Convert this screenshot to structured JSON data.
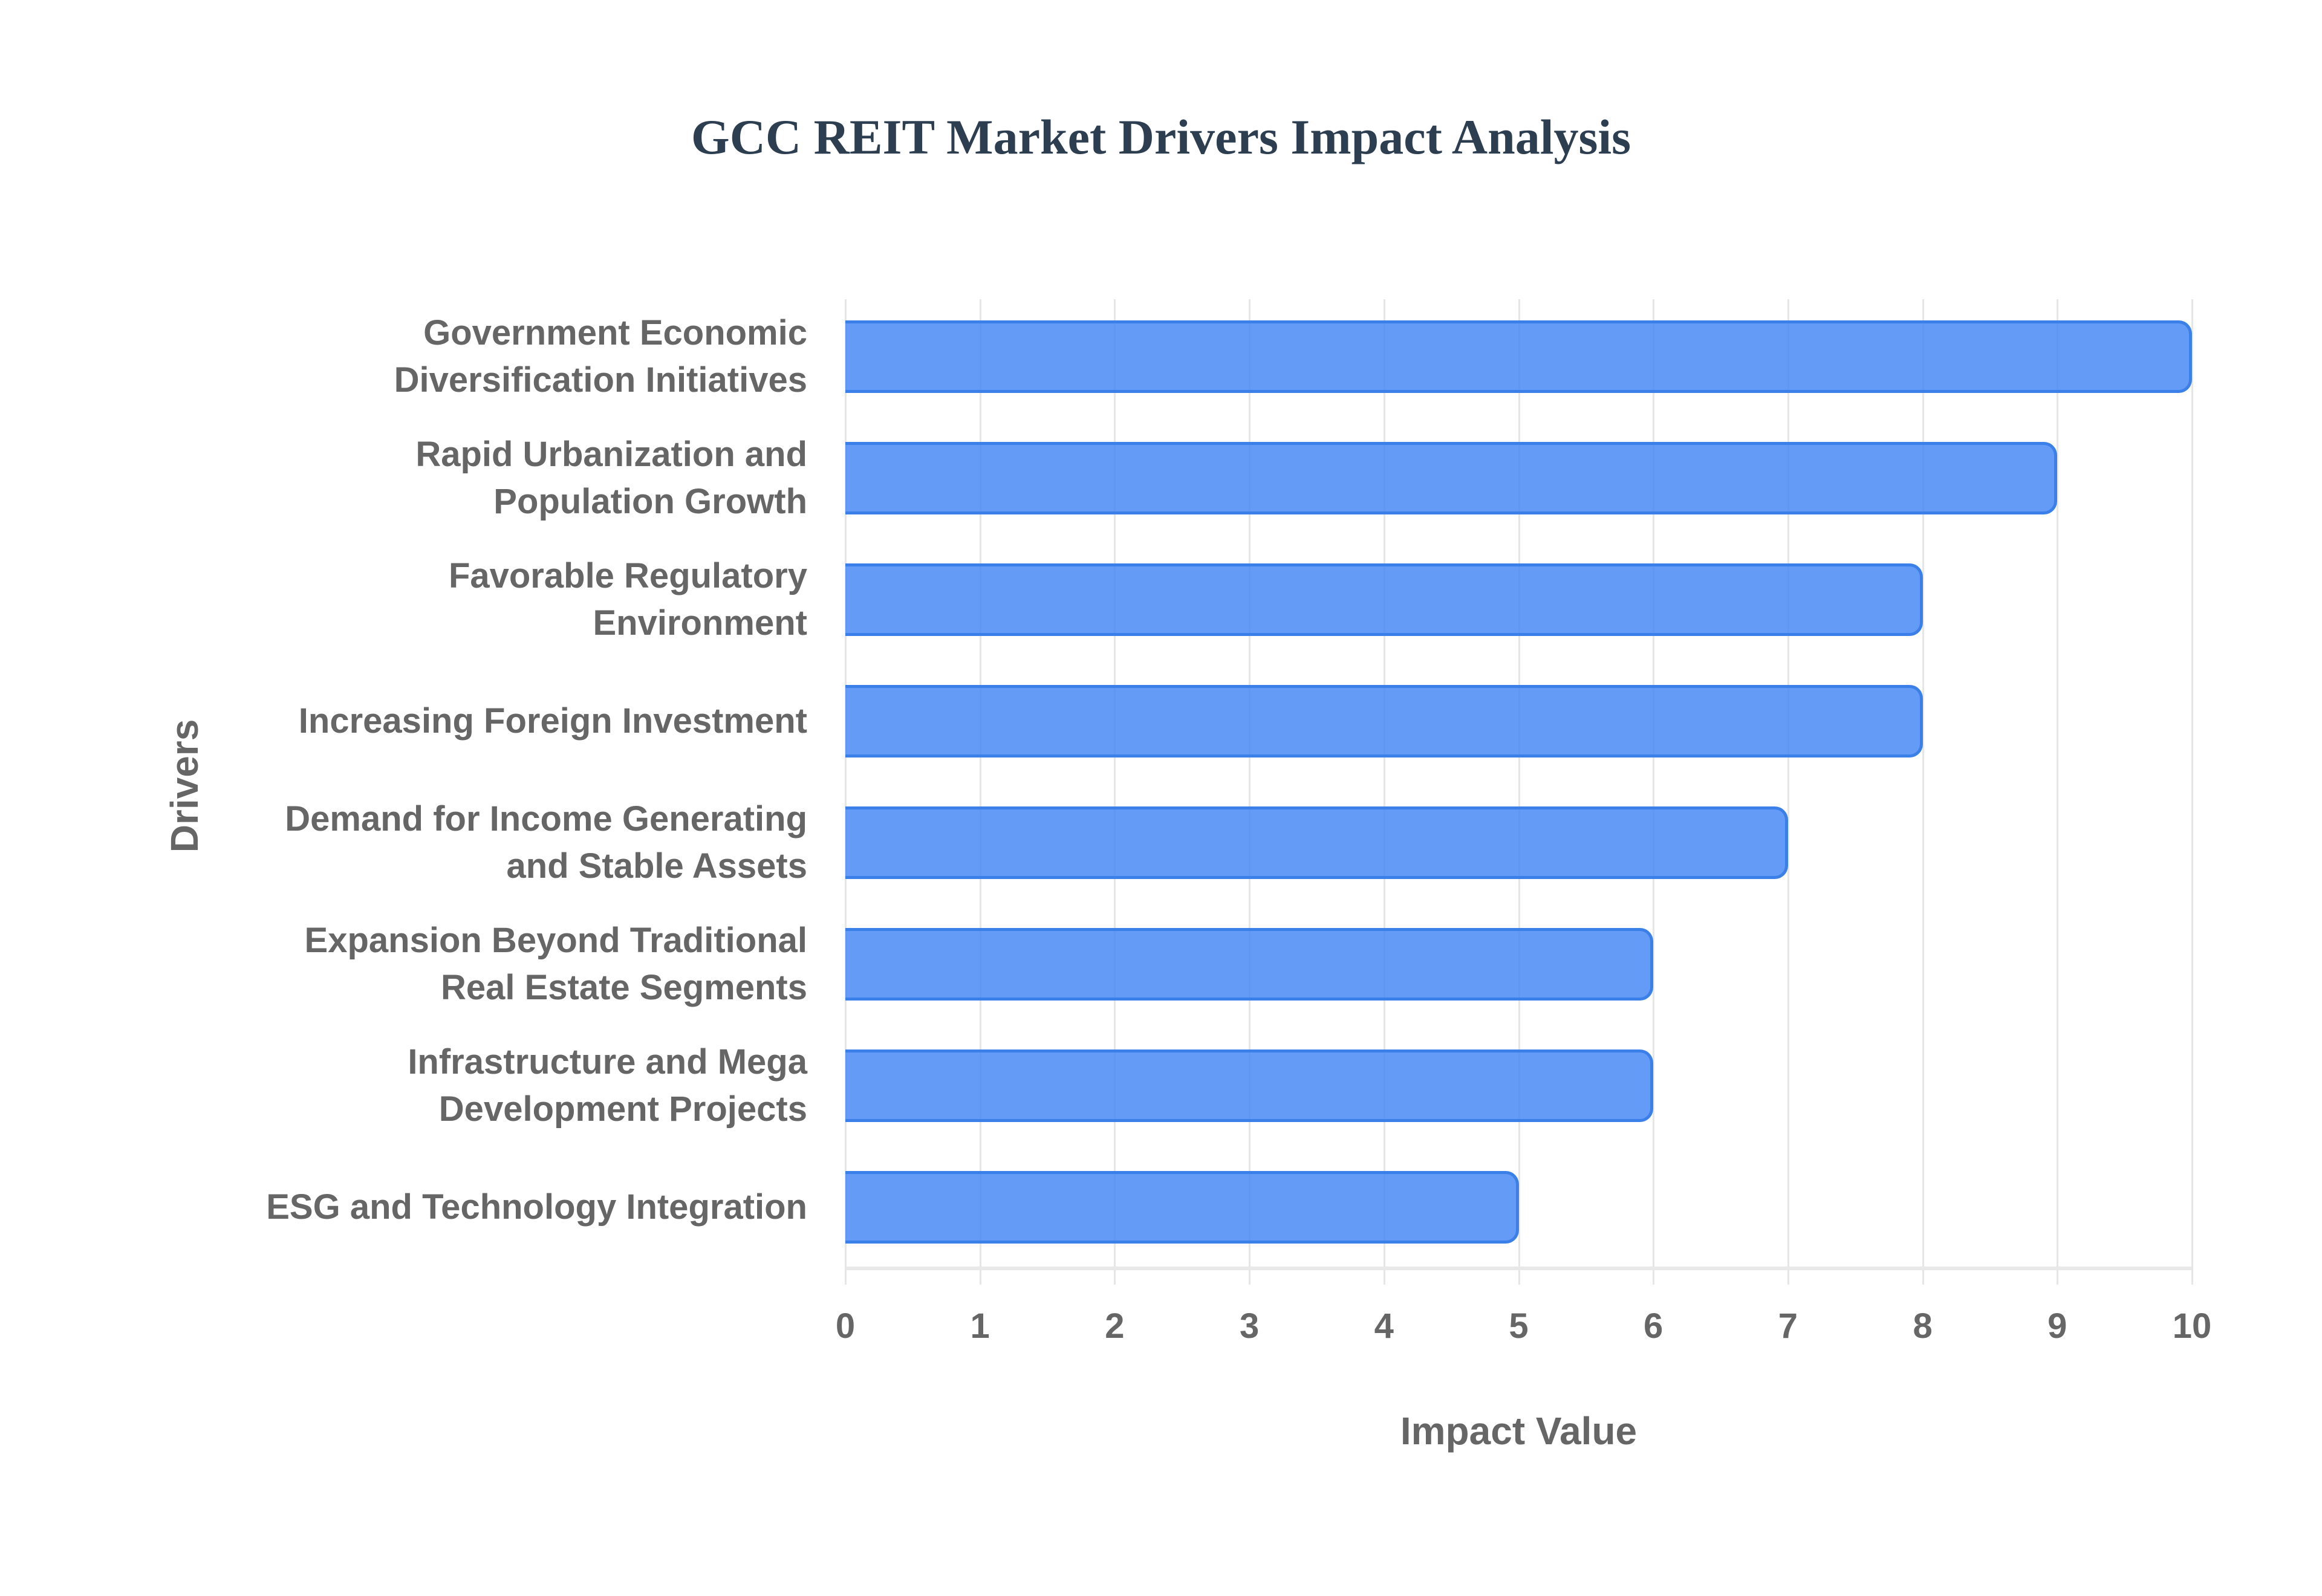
{
  "chart_data": {
    "type": "bar",
    "orientation": "horizontal",
    "title": "GCC REIT Market Drivers Impact Analysis",
    "xlabel": "Impact Value",
    "ylabel": "Drivers",
    "xlim": [
      0,
      10
    ],
    "xticks": [
      "0",
      "1",
      "2",
      "3",
      "4",
      "5",
      "6",
      "7",
      "8",
      "9",
      "10"
    ],
    "grid": true,
    "legend": null,
    "bar_color": "#4285f4",
    "categories": [
      [
        "Government Economic",
        "Diversification Initiatives"
      ],
      [
        "Rapid Urbanization and",
        "Population Growth"
      ],
      [
        "Favorable Regulatory",
        "Environment"
      ],
      [
        "Increasing Foreign Investment"
      ],
      [
        "Demand for Income Generating",
        "and Stable Assets"
      ],
      [
        "Expansion Beyond Traditional",
        "Real Estate Segments"
      ],
      [
        "Infrastructure and Mega",
        "Development Projects"
      ],
      [
        "ESG and Technology Integration"
      ]
    ],
    "category_names": [
      "Government Economic Diversification Initiatives",
      "Rapid Urbanization and Population Growth",
      "Favorable Regulatory Environment",
      "Increasing Foreign Investment",
      "Demand for Income Generating and Stable Assets",
      "Expansion Beyond Traditional Real Estate Segments",
      "Infrastructure and Mega Development Projects",
      "ESG and Technology Integration"
    ],
    "values": [
      10,
      9,
      8,
      8,
      7,
      6,
      6,
      5
    ]
  }
}
